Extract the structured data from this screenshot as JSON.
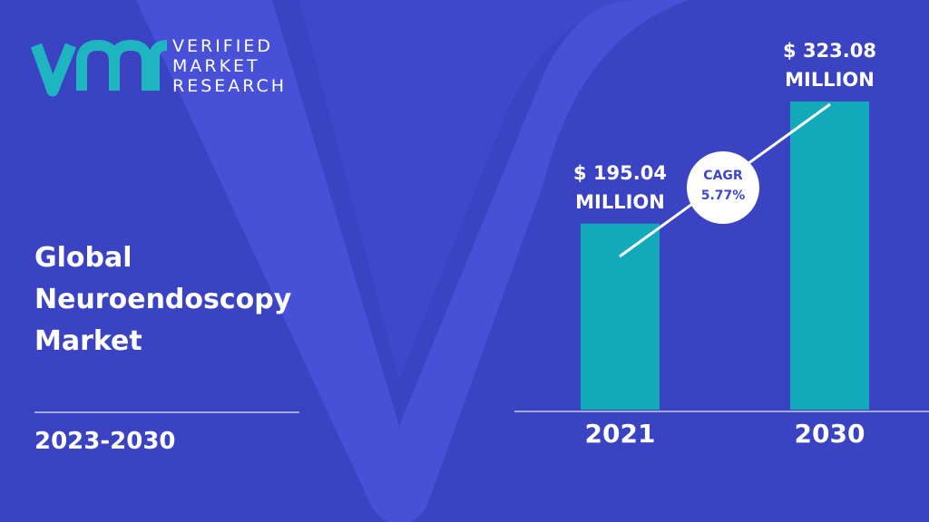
{
  "logo": {
    "lines": [
      "VERIFIED",
      "MARKET",
      "RESEARCH"
    ]
  },
  "chart_data": {
    "type": "bar",
    "title": "Global Neuroendoscopy Market",
    "subtitle": "2023-2030",
    "categories": [
      "2021",
      "2030"
    ],
    "values": [
      195.04,
      323.08
    ],
    "value_labels": [
      "$ 195.04 MILLION",
      "$ 323.08 MILLION"
    ],
    "color": "#12aabb",
    "annotation": {
      "label": "CAGR",
      "value": "5.77%"
    }
  }
}
